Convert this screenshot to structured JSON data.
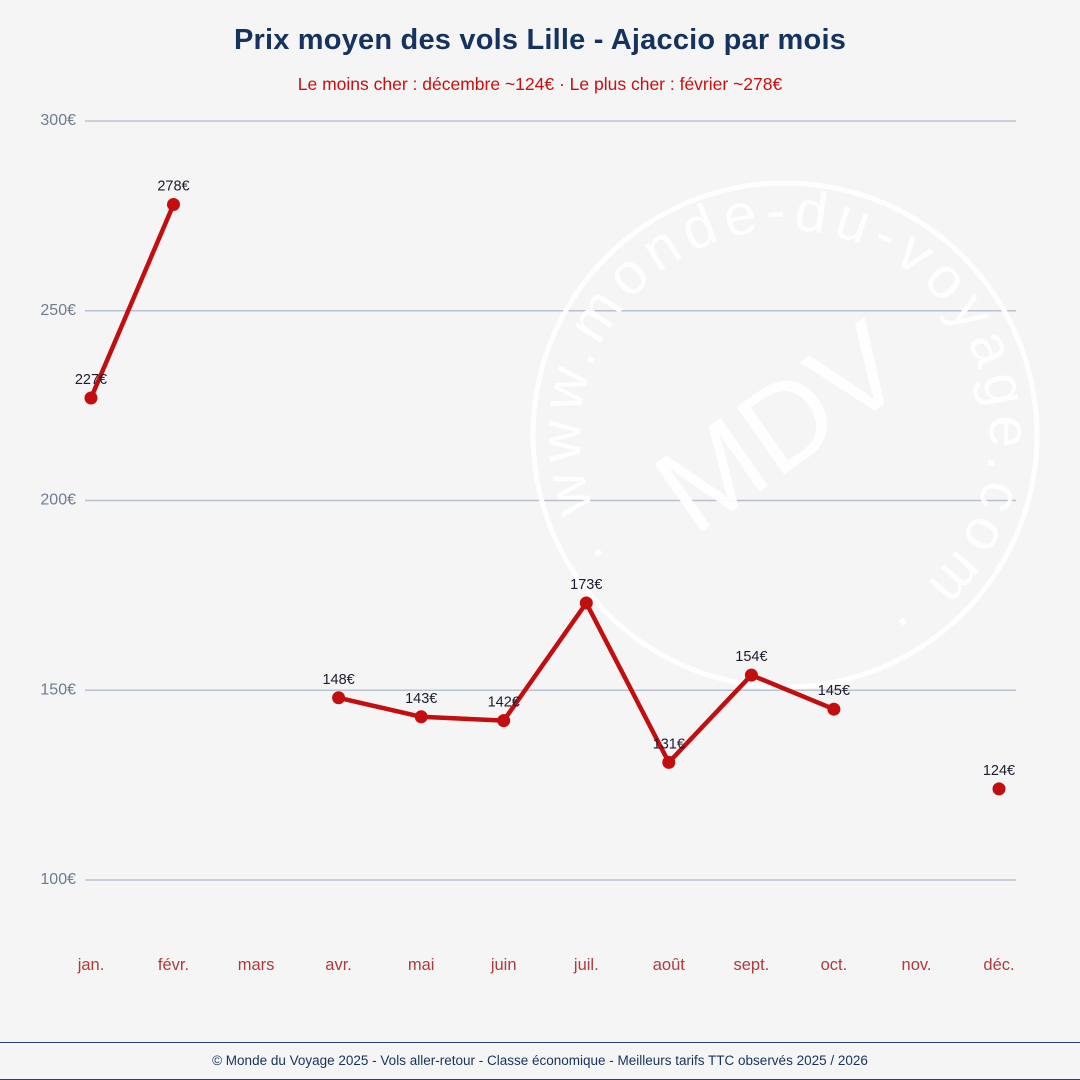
{
  "page": {
    "title": "Prix moyen des vols Lille - Ajaccio par mois",
    "subtitle": "Le moins cher : décembre ~124€ · Le plus cher : février ~278€",
    "footer": "© Monde du Voyage 2025 - Vols aller-retour - Classe économique - Meilleurs tarifs TTC observés 2025 / 2026"
  },
  "colors": {
    "background": "#f5f5f5",
    "title": "#15335e",
    "subtitle": "#cc0e0e",
    "line": "#c20e0e",
    "point": "#c20e0e",
    "grid": "#b9c1d1",
    "axis_label": "#6e7b94",
    "month_label": "#b13a3a",
    "data_label": "#1c1c30",
    "footer": "#15335e",
    "watermark": "#ffffff"
  },
  "watermark": {
    "text": "www.monde-du-voyage.com",
    "center": "MDV"
  },
  "chart_data": {
    "type": "line",
    "title": "Prix moyen des vols Lille - Ajaccio par mois",
    "subtitle": "Le moins cher : décembre ~124€ · Le plus cher : février ~278€",
    "categories": [
      "jan.",
      "févr.",
      "mars",
      "avr.",
      "mai",
      "juin",
      "juil.",
      "août",
      "sept.",
      "oct.",
      "nov.",
      "déc."
    ],
    "values": [
      227,
      278,
      null,
      148,
      143,
      142,
      173,
      131,
      154,
      145,
      null,
      124
    ],
    "unit": "€",
    "xlabel": "",
    "ylabel": "",
    "ylim": [
      100,
      300
    ],
    "yticks": [
      300,
      250,
      200,
      150,
      100
    ],
    "grid": true,
    "legend": "none",
    "cheapest": {
      "month": "décembre",
      "value": 124
    },
    "most_expensive": {
      "month": "février",
      "value": 278
    }
  }
}
